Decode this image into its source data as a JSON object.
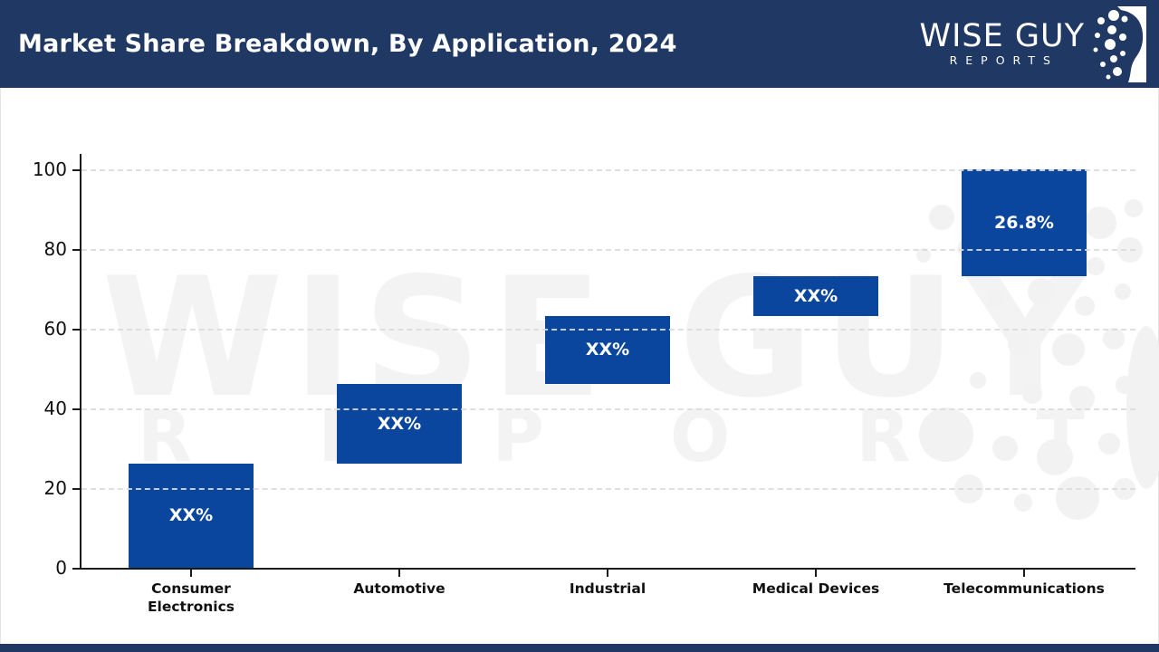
{
  "header": {
    "title": "Market Share Breakdown, By Application, 2024"
  },
  "logo": {
    "line1": "WISE GUY",
    "line2": "REPORTS"
  },
  "watermark": {
    "line1": "WISE GUY",
    "line2": "R E P O R T S"
  },
  "chart_data": {
    "type": "bar",
    "subtype": "waterfall",
    "title": "Market Share Breakdown, By Application, 2024",
    "categories": [
      "Consumer Electronics",
      "Automotive",
      "Industrial",
      "Medical Devices",
      "Telecommunications"
    ],
    "segments": [
      {
        "category": "Consumer Electronics",
        "start": 0,
        "value": 26.2,
        "label": "XX%"
      },
      {
        "category": "Automotive",
        "start": 26.2,
        "value": 20.0,
        "label": "XX%"
      },
      {
        "category": "Industrial",
        "start": 46.2,
        "value": 17.0,
        "label": "XX%"
      },
      {
        "category": "Medical Devices",
        "start": 63.2,
        "value": 10.0,
        "label": "XX%"
      },
      {
        "category": "Telecommunications",
        "start": 73.2,
        "value": 26.8,
        "label": "26.8%"
      }
    ],
    "xlabel": "",
    "ylabel": "",
    "ylim": [
      0,
      100
    ],
    "yticks": [
      0,
      20,
      40,
      60,
      80,
      100
    ],
    "grid": "dashed-horizontal",
    "legend": "none",
    "colors": {
      "bar": "#0a459e",
      "bar_label": "#ffffff",
      "header_bg": "#203864",
      "grid": "#dcdcdc",
      "axis": "#1a1a1a",
      "watermark": "#f3f3f3"
    }
  }
}
